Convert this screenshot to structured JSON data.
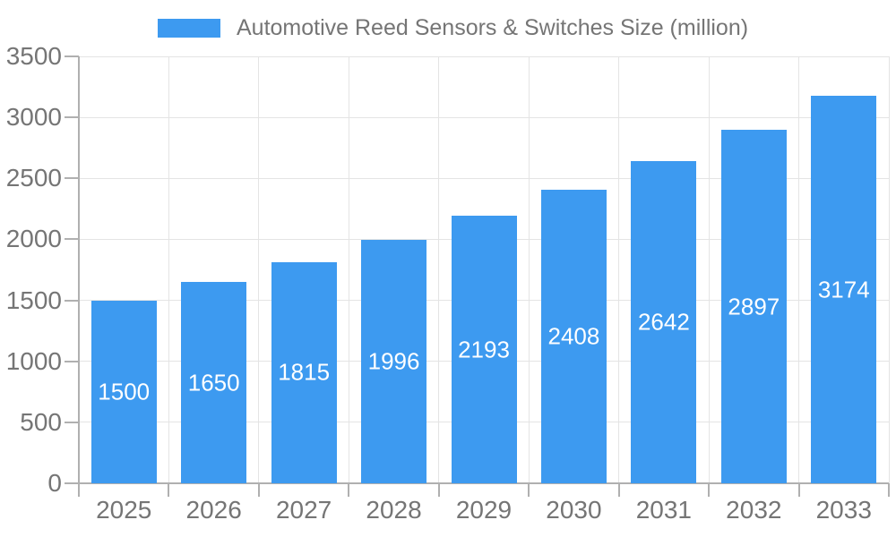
{
  "chart_data": {
    "type": "bar",
    "title": "Automotive Reed Sensors & Switches Size (million)",
    "categories": [
      "2025",
      "2026",
      "2027",
      "2028",
      "2029",
      "2030",
      "2031",
      "2032",
      "2033"
    ],
    "values": [
      1500,
      1650,
      1815,
      1996,
      2193,
      2408,
      2642,
      2897,
      3174
    ],
    "xlabel": "",
    "ylabel": "",
    "ylim": [
      0,
      3500
    ],
    "yticks": [
      0,
      500,
      1000,
      1500,
      2000,
      2500,
      3000,
      3500
    ],
    "grid": true,
    "legend_position": "top-center",
    "value_labels": "inside-center"
  },
  "legend": {
    "items": [
      {
        "label": "Automotive Reed Sensors & Switches Size (million)",
        "swatch_color": "#3d9af0"
      }
    ]
  },
  "colors": {
    "bar": "#3d9af0",
    "axis_line": "#b0b0b0",
    "gridline": "#e4e4e4",
    "axis_text": "#757575",
    "bar_label_text": "#ffffff",
    "background": "#ffffff"
  }
}
